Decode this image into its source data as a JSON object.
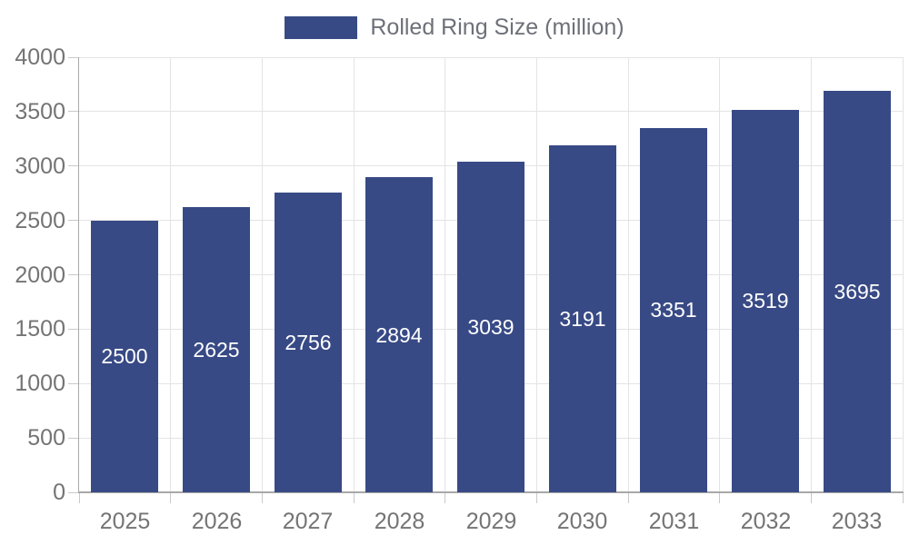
{
  "legend": {
    "label": "Rolled Ring Size (million)"
  },
  "colors": {
    "bar": "#384a85",
    "grid": "#e4e4e4",
    "axis": "#a8a8a8",
    "tick": "#c9c9c9",
    "axis_text": "#747474",
    "legend_text": "#6e7079",
    "bar_label_text": "#ffffff",
    "background": "#ffffff"
  },
  "chart_data": {
    "type": "bar",
    "title": "",
    "categories": [
      "2025",
      "2026",
      "2027",
      "2028",
      "2029",
      "2030",
      "2031",
      "2032",
      "2033"
    ],
    "series": [
      {
        "name": "Rolled Ring Size (million)",
        "values": [
          2500,
          2625,
          2756,
          2894,
          3039,
          3191,
          3351,
          3519,
          3695
        ]
      }
    ],
    "xlabel": "",
    "ylabel": "",
    "ylim": [
      0,
      4000
    ],
    "y_ticks": [
      0,
      500,
      1000,
      1500,
      2000,
      2500,
      3000,
      3500,
      4000
    ],
    "grid": true,
    "legend_position": "top-center",
    "value_labels_position": "inside-middle"
  }
}
